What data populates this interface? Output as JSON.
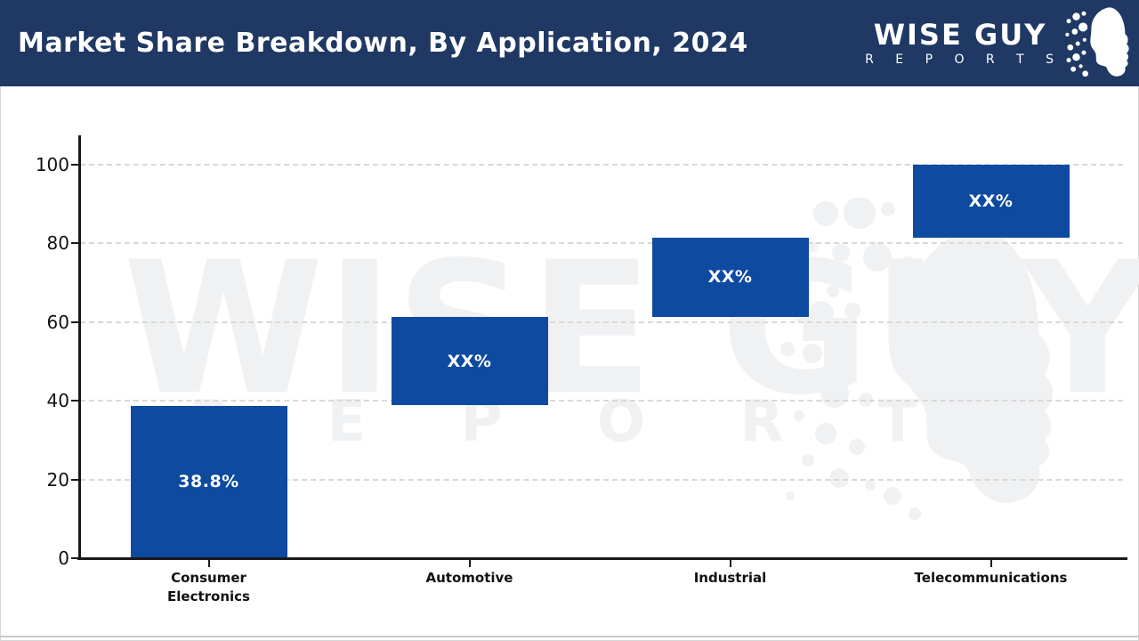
{
  "header": {
    "title": "Market Share Breakdown, By Application, 2024",
    "logo": {
      "line1": "WISE GUY",
      "line2": "R E P O R T S"
    }
  },
  "watermark": {
    "line1": "WISE GUY",
    "line2": "R E P O R T S"
  },
  "chart_data": {
    "type": "bar",
    "subtype": "stacked-waterfall-percentage",
    "title": "Market Share Breakdown, By Application, 2024",
    "categories": [
      "Consumer Electronics",
      "Automotive",
      "Industrial",
      "Telecommunications"
    ],
    "segments": [
      {
        "category": "Consumer Electronics",
        "start": 0,
        "end": 38.8,
        "label": "38.8%"
      },
      {
        "category": "Automotive",
        "start": 38.8,
        "end": 61.3,
        "label": "XX%"
      },
      {
        "category": "Industrial",
        "start": 61.3,
        "end": 81.5,
        "label": "XX%"
      },
      {
        "category": "Telecommunications",
        "start": 81.5,
        "end": 100,
        "label": "XX%"
      }
    ],
    "xlabel": "",
    "ylabel": "",
    "ylim": [
      0,
      100
    ],
    "yticks": [
      0,
      20,
      40,
      60,
      80,
      100
    ],
    "grid": "horizontal dashed",
    "legend": "none"
  },
  "colors": {
    "header_bg": "#1f3864",
    "bar": "#0d4aa0",
    "bar_label": "#ffffff",
    "watermark": "#f0f1f3",
    "grid": "#d8d8d8",
    "axis": "#1a1a1a"
  }
}
